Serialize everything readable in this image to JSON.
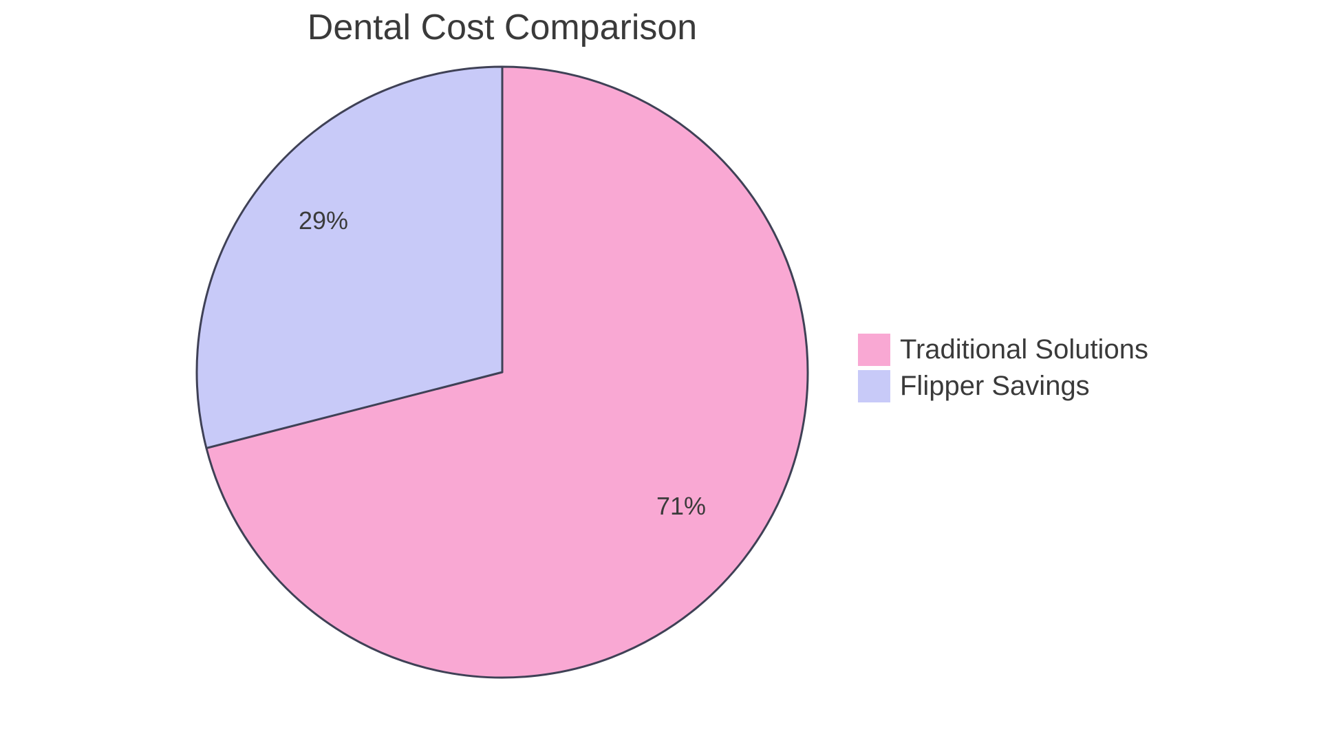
{
  "title": "Dental Cost Comparison",
  "chart_data": {
    "type": "pie",
    "title": "Dental Cost Comparison",
    "labels": [
      "Traditional Solutions",
      "Flipper Savings"
    ],
    "values": [
      71,
      29
    ],
    "unit": "percent",
    "slice_labels": [
      "71%",
      "29%"
    ],
    "colors": [
      "#F9A8D3",
      "#C8CAF8"
    ],
    "stroke_color": "#3F4156",
    "stroke_width": 3,
    "start_angle_deg": -90,
    "direction": "clockwise",
    "legend_position": "right",
    "background": "#FFFFFF"
  },
  "legend": {
    "items": [
      {
        "label": "Traditional Solutions",
        "color": "#F9A8D3"
      },
      {
        "label": "Flipper Savings",
        "color": "#C8CAF8"
      }
    ]
  }
}
